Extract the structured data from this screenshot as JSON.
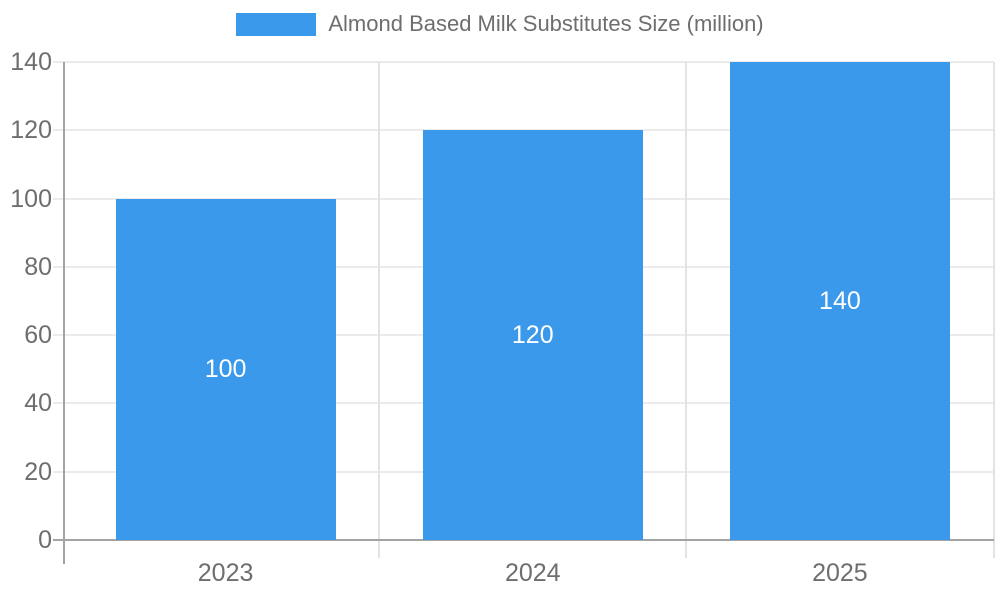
{
  "chart_data": {
    "type": "bar",
    "title": "Almond Based Milk Substitutes Size (million)",
    "categories": [
      "2023",
      "2024",
      "2025"
    ],
    "values": [
      100,
      120,
      140
    ],
    "data_labels": [
      "100",
      "120",
      "140"
    ],
    "series": [
      {
        "name": "Almond Based Milk Substitutes Size (million)",
        "values": [
          100,
          120,
          140
        ]
      }
    ],
    "yticks": [
      0,
      20,
      40,
      60,
      80,
      100,
      120,
      140
    ],
    "ytick_labels": [
      "0",
      "20",
      "40",
      "60",
      "80",
      "100",
      "120",
      "140"
    ],
    "ylim": [
      0,
      140
    ],
    "xlabel": "",
    "ylabel": "",
    "grid": true,
    "legend_position": "top",
    "colors": {
      "bar": "#3b99ec",
      "legend_swatch": "#3b99ec",
      "data_label_text": "#ffffff",
      "tick_text": "#6e6e6e",
      "legend_text": "#6e6e6e",
      "grid_line": "#ebebeb",
      "category_boundary_line": "#e3e3e3",
      "axis_line": "#a3a3a3",
      "background": "#ffffff"
    }
  }
}
